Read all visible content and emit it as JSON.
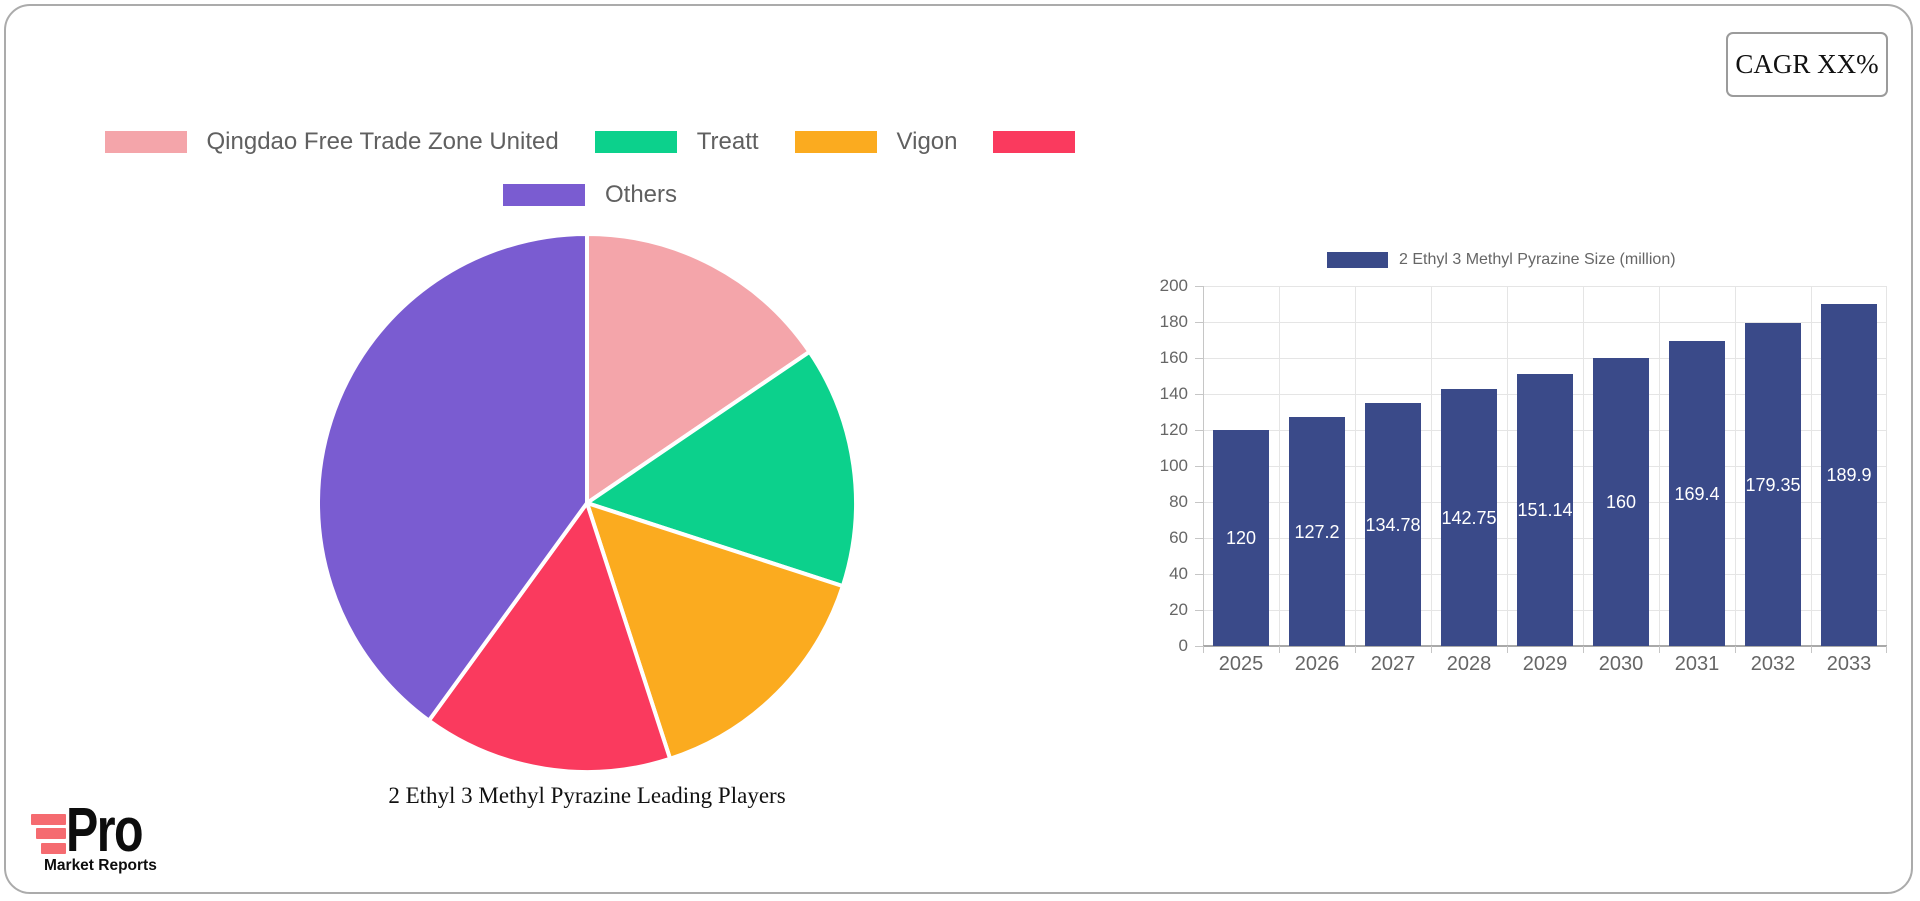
{
  "cagr_box": {
    "label": "CAGR XX%"
  },
  "logo": {
    "title": "Pro",
    "subtitle": "Market Reports",
    "accent_color": "#F56B70",
    "text_color": "#0D0D0D"
  },
  "chart_data": [
    {
      "type": "pie",
      "title": "2 Ethyl 3 Methyl Pyrazine Leading Players",
      "labels": [
        "Qingdao Free Trade Zone United",
        "Treatt",
        "Vigon",
        "",
        "Others"
      ],
      "values": [
        15.5,
        14.5,
        15,
        15,
        40
      ],
      "colors": [
        "#F4A5AA",
        "#0CD18C",
        "#FBAB1F",
        "#FA3A5E",
        "#7A5CD1"
      ],
      "slice_border_color": "#FFFFFF",
      "start_angle_deg": 0,
      "direction": "clockwise",
      "legend_position": "top"
    },
    {
      "type": "bar",
      "series_label": "2 Ethyl 3 Methyl Pyrazine Size (million)",
      "categories": [
        "2025",
        "2026",
        "2027",
        "2028",
        "2029",
        "2030",
        "2031",
        "2032",
        "2033"
      ],
      "values": [
        120,
        127.2,
        134.78,
        142.75,
        151.14,
        160,
        169.4,
        179.35,
        189.9
      ],
      "bar_color": "#3A4A89",
      "value_label_color": "#FFFFFF",
      "axis_text_color": "#666666",
      "ylim": [
        0,
        200
      ],
      "y_ticks": [
        0,
        20,
        40,
        60,
        80,
        100,
        120,
        140,
        160,
        180,
        200
      ],
      "grid": true,
      "legend_position": "top"
    }
  ]
}
